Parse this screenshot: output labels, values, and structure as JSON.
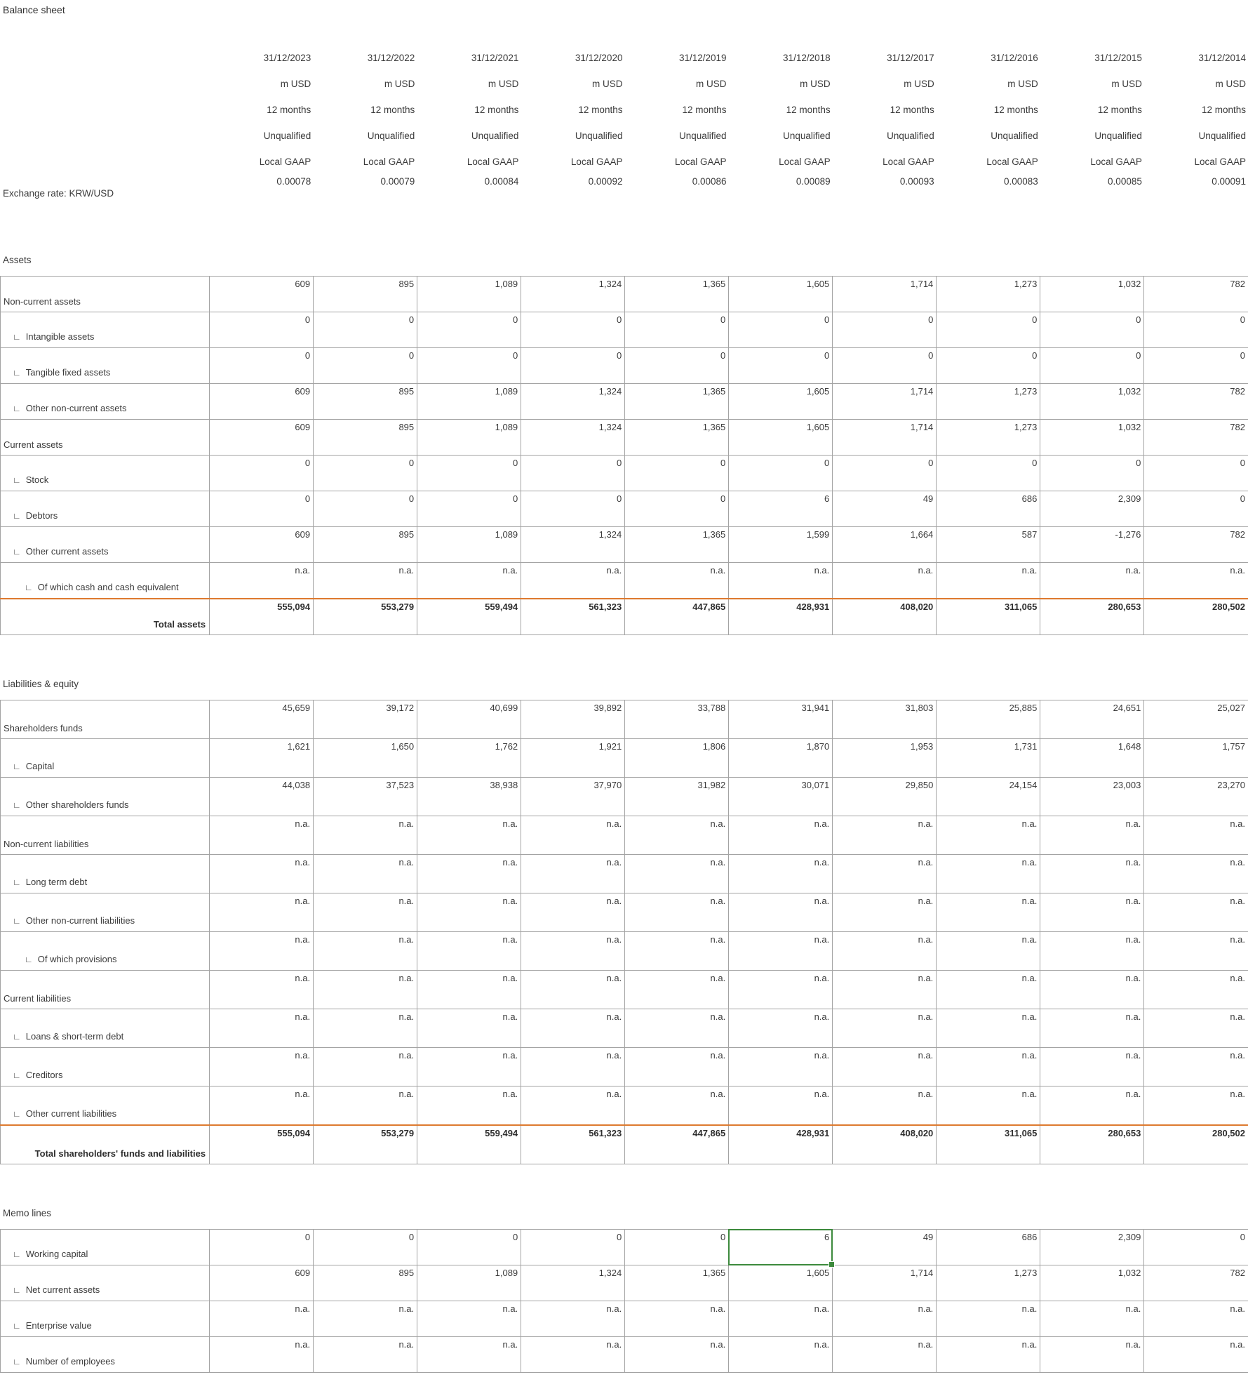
{
  "title": "Balance sheet",
  "colors": {
    "total_rule_orange": "#de7a2f",
    "selection_green": "#3c8a3c",
    "grid_line_gray": "#a3a3a3"
  },
  "icons": {
    "sub_item_glyph": "∟"
  },
  "header": {
    "exchange_rate_label": "Exchange rate: KRW/USD",
    "columns": [
      {
        "date": "31/12/2023",
        "unit": "m USD",
        "months": "12 months",
        "audit": "Unqualified",
        "gaap": "Local GAAP",
        "rate": "0.00078"
      },
      {
        "date": "31/12/2022",
        "unit": "m USD",
        "months": "12 months",
        "audit": "Unqualified",
        "gaap": "Local GAAP",
        "rate": "0.00079"
      },
      {
        "date": "31/12/2021",
        "unit": "m USD",
        "months": "12 months",
        "audit": "Unqualified",
        "gaap": "Local GAAP",
        "rate": "0.00084"
      },
      {
        "date": "31/12/2020",
        "unit": "m USD",
        "months": "12 months",
        "audit": "Unqualified",
        "gaap": "Local GAAP",
        "rate": "0.00092"
      },
      {
        "date": "31/12/2019",
        "unit": "m USD",
        "months": "12 months",
        "audit": "Unqualified",
        "gaap": "Local GAAP",
        "rate": "0.00086"
      },
      {
        "date": "31/12/2018",
        "unit": "m USD",
        "months": "12 months",
        "audit": "Unqualified",
        "gaap": "Local GAAP",
        "rate": "0.00089"
      },
      {
        "date": "31/12/2017",
        "unit": "m USD",
        "months": "12 months",
        "audit": "Unqualified",
        "gaap": "Local GAAP",
        "rate": "0.00093"
      },
      {
        "date": "31/12/2016",
        "unit": "m USD",
        "months": "12 months",
        "audit": "Unqualified",
        "gaap": "Local GAAP",
        "rate": "0.00083"
      },
      {
        "date": "31/12/2015",
        "unit": "m USD",
        "months": "12 months",
        "audit": "Unqualified",
        "gaap": "Local GAAP",
        "rate": "0.00085"
      },
      {
        "date": "31/12/2014",
        "unit": "m USD",
        "months": "12 months",
        "audit": "Unqualified",
        "gaap": "Local GAAP",
        "rate": "0.00091"
      }
    ]
  },
  "sections": [
    {
      "heading": "Assets",
      "rows": [
        {
          "label": "Non-current assets",
          "indent": 0,
          "total": false,
          "values": [
            "609",
            "895",
            "1,089",
            "1,324",
            "1,365",
            "1,605",
            "1,714",
            "1,273",
            "1,032",
            "782"
          ]
        },
        {
          "label": "Intangible assets",
          "indent": 1,
          "total": false,
          "values": [
            "0",
            "0",
            "0",
            "0",
            "0",
            "0",
            "0",
            "0",
            "0",
            "0"
          ]
        },
        {
          "label": "Tangible fixed assets",
          "indent": 1,
          "total": false,
          "values": [
            "0",
            "0",
            "0",
            "0",
            "0",
            "0",
            "0",
            "0",
            "0",
            "0"
          ]
        },
        {
          "label": "Other non-current assets",
          "indent": 1,
          "total": false,
          "values": [
            "609",
            "895",
            "1,089",
            "1,324",
            "1,365",
            "1,605",
            "1,714",
            "1,273",
            "1,032",
            "782"
          ]
        },
        {
          "label": "Current assets",
          "indent": 0,
          "total": false,
          "values": [
            "609",
            "895",
            "1,089",
            "1,324",
            "1,365",
            "1,605",
            "1,714",
            "1,273",
            "1,032",
            "782"
          ]
        },
        {
          "label": "Stock",
          "indent": 1,
          "total": false,
          "values": [
            "0",
            "0",
            "0",
            "0",
            "0",
            "0",
            "0",
            "0",
            "0",
            "0"
          ]
        },
        {
          "label": "Debtors",
          "indent": 1,
          "total": false,
          "values": [
            "0",
            "0",
            "0",
            "0",
            "0",
            "6",
            "49",
            "686",
            "2,309",
            "0"
          ]
        },
        {
          "label": "Other current assets",
          "indent": 1,
          "total": false,
          "values": [
            "609",
            "895",
            "1,089",
            "1,324",
            "1,365",
            "1,599",
            "1,664",
            "587",
            "-1,276",
            "782"
          ]
        },
        {
          "label": "Of which cash and cash equivalent",
          "indent": 2,
          "total": false,
          "values": [
            "n.a.",
            "n.a.",
            "n.a.",
            "n.a.",
            "n.a.",
            "n.a.",
            "n.a.",
            "n.a.",
            "n.a.",
            "n.a."
          ]
        },
        {
          "label": "Total assets",
          "indent": 0,
          "total": true,
          "values": [
            "555,094",
            "553,279",
            "559,494",
            "561,323",
            "447,865",
            "428,931",
            "408,020",
            "311,065",
            "280,653",
            "280,502"
          ]
        }
      ]
    },
    {
      "heading": "Liabilities & equity",
      "rows": [
        {
          "label": "Shareholders funds",
          "indent": 0,
          "total": false,
          "values": [
            "45,659",
            "39,172",
            "40,699",
            "39,892",
            "33,788",
            "31,941",
            "31,803",
            "25,885",
            "24,651",
            "25,027"
          ]
        },
        {
          "label": "Capital",
          "indent": 1,
          "total": false,
          "values": [
            "1,621",
            "1,650",
            "1,762",
            "1,921",
            "1,806",
            "1,870",
            "1,953",
            "1,731",
            "1,648",
            "1,757"
          ]
        },
        {
          "label": "Other shareholders funds",
          "indent": 1,
          "total": false,
          "values": [
            "44,038",
            "37,523",
            "38,938",
            "37,970",
            "31,982",
            "30,071",
            "29,850",
            "24,154",
            "23,003",
            "23,270"
          ]
        },
        {
          "label": "Non-current liabilities",
          "indent": 0,
          "total": false,
          "values": [
            "n.a.",
            "n.a.",
            "n.a.",
            "n.a.",
            "n.a.",
            "n.a.",
            "n.a.",
            "n.a.",
            "n.a.",
            "n.a."
          ]
        },
        {
          "label": "Long term debt",
          "indent": 1,
          "total": false,
          "values": [
            "n.a.",
            "n.a.",
            "n.a.",
            "n.a.",
            "n.a.",
            "n.a.",
            "n.a.",
            "n.a.",
            "n.a.",
            "n.a."
          ]
        },
        {
          "label": "Other non-current liabilities",
          "indent": 1,
          "total": false,
          "values": [
            "n.a.",
            "n.a.",
            "n.a.",
            "n.a.",
            "n.a.",
            "n.a.",
            "n.a.",
            "n.a.",
            "n.a.",
            "n.a."
          ]
        },
        {
          "label": "Of which provisions",
          "indent": 2,
          "total": false,
          "values": [
            "n.a.",
            "n.a.",
            "n.a.",
            "n.a.",
            "n.a.",
            "n.a.",
            "n.a.",
            "n.a.",
            "n.a.",
            "n.a."
          ]
        },
        {
          "label": "Current liabilities",
          "indent": 0,
          "total": false,
          "values": [
            "n.a.",
            "n.a.",
            "n.a.",
            "n.a.",
            "n.a.",
            "n.a.",
            "n.a.",
            "n.a.",
            "n.a.",
            "n.a."
          ]
        },
        {
          "label": "Loans & short-term debt",
          "indent": 1,
          "total": false,
          "values": [
            "n.a.",
            "n.a.",
            "n.a.",
            "n.a.",
            "n.a.",
            "n.a.",
            "n.a.",
            "n.a.",
            "n.a.",
            "n.a."
          ]
        },
        {
          "label": "Creditors",
          "indent": 1,
          "total": false,
          "values": [
            "n.a.",
            "n.a.",
            "n.a.",
            "n.a.",
            "n.a.",
            "n.a.",
            "n.a.",
            "n.a.",
            "n.a.",
            "n.a."
          ]
        },
        {
          "label": "Other current liabilities",
          "indent": 1,
          "total": false,
          "values": [
            "n.a.",
            "n.a.",
            "n.a.",
            "n.a.",
            "n.a.",
            "n.a.",
            "n.a.",
            "n.a.",
            "n.a.",
            "n.a."
          ]
        },
        {
          "label": "Total shareholders' funds and liabilities",
          "indent": 0,
          "total": true,
          "values": [
            "555,094",
            "553,279",
            "559,494",
            "561,323",
            "447,865",
            "428,931",
            "408,020",
            "311,065",
            "280,653",
            "280,502"
          ]
        }
      ]
    },
    {
      "heading": "Memo lines",
      "rows": [
        {
          "label": "Working capital",
          "indent": 1,
          "total": false,
          "selected_col": 5,
          "values": [
            "0",
            "0",
            "0",
            "0",
            "0",
            "6",
            "49",
            "686",
            "2,309",
            "0"
          ]
        },
        {
          "label": "Net current assets",
          "indent": 1,
          "total": false,
          "values": [
            "609",
            "895",
            "1,089",
            "1,324",
            "1,365",
            "1,605",
            "1,714",
            "1,273",
            "1,032",
            "782"
          ]
        },
        {
          "label": "Enterprise value",
          "indent": 1,
          "total": false,
          "values": [
            "n.a.",
            "n.a.",
            "n.a.",
            "n.a.",
            "n.a.",
            "n.a.",
            "n.a.",
            "n.a.",
            "n.a.",
            "n.a."
          ]
        },
        {
          "label": "Number of employees",
          "indent": 1,
          "total": false,
          "values": [
            "n.a.",
            "n.a.",
            "n.a.",
            "n.a.",
            "n.a.",
            "n.a.",
            "n.a.",
            "n.a.",
            "n.a.",
            "n.a."
          ]
        }
      ]
    }
  ]
}
